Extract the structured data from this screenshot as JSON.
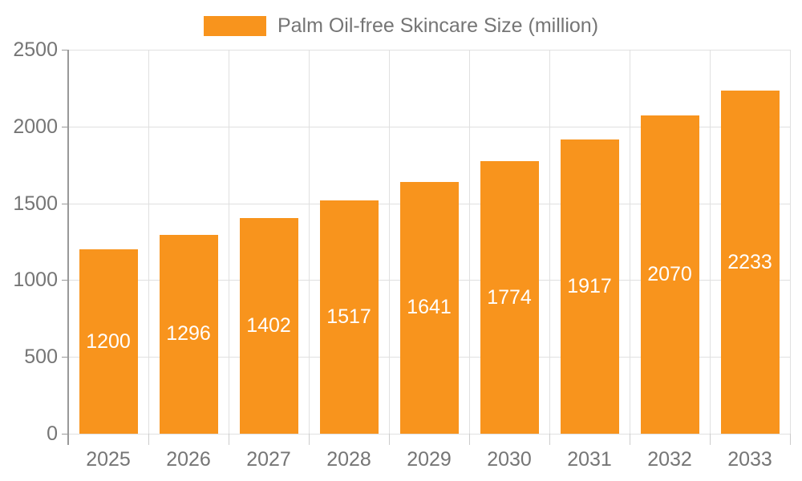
{
  "legend": {
    "label": "Palm Oil-free Skincare Size (million)"
  },
  "colors": {
    "bar": "#F8941D",
    "grid": "#E0E0E0",
    "axis": "#999999",
    "x_tick": "#CCCCCC",
    "text": "#757575",
    "value_label": "#FFFFFF",
    "background": "#FFFFFF"
  },
  "chart_data": {
    "type": "bar",
    "title": "Palm Oil-free Skincare Size (million)",
    "categories": [
      "2025",
      "2026",
      "2027",
      "2028",
      "2029",
      "2030",
      "2031",
      "2032",
      "2033"
    ],
    "values": [
      1200,
      1296,
      1402,
      1517,
      1641,
      1774,
      1917,
      2070,
      2233
    ],
    "xlabel": "",
    "ylabel": "",
    "ylim": [
      0,
      2500
    ],
    "yticks": [
      0,
      500,
      1000,
      1500,
      2000,
      2500
    ],
    "grid": true,
    "legend_position": "top",
    "bar_labels_inside": true
  }
}
